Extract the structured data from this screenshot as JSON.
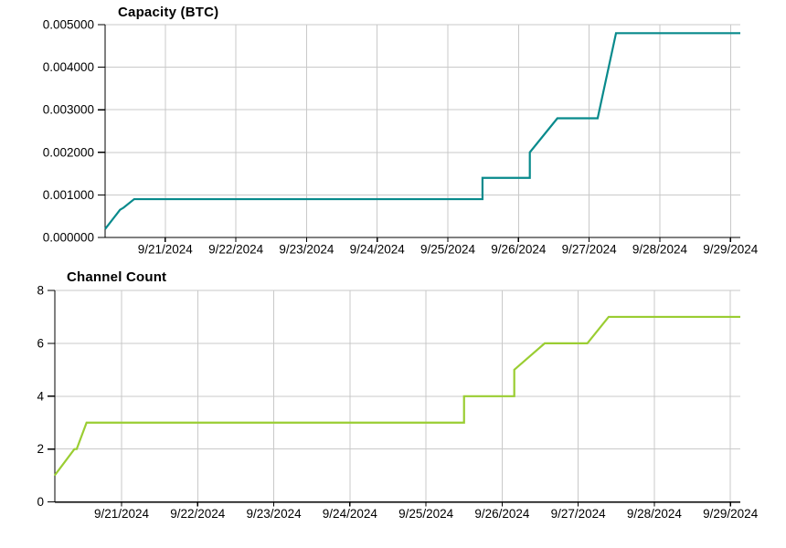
{
  "page_background": "#ffffff",
  "chart_data": [
    {
      "id": "capacity",
      "type": "line",
      "title": "Capacity (BTC)",
      "line_color": "#088a8c",
      "grid_color": "#c9c9c9",
      "axis_color": "#000000",
      "text_color": "#000000",
      "grid": true,
      "legend": "none",
      "x_range_days": [
        20.149,
        29.139
      ],
      "ylim": [
        0,
        0.005
      ],
      "x_ticks": [
        {
          "day": 21,
          "label": "9/21/2024"
        },
        {
          "day": 22,
          "label": "9/22/2024"
        },
        {
          "day": 23,
          "label": "9/23/2024"
        },
        {
          "day": 24,
          "label": "9/24/2024"
        },
        {
          "day": 25,
          "label": "9/25/2024"
        },
        {
          "day": 26,
          "label": "9/26/2024"
        },
        {
          "day": 27,
          "label": "9/27/2024"
        },
        {
          "day": 28,
          "label": "9/28/2024"
        },
        {
          "day": 29,
          "label": "9/29/2024"
        }
      ],
      "y_ticks": [
        {
          "value": 0,
          "label": "0.000000"
        },
        {
          "value": 0.001,
          "label": "0.001000"
        },
        {
          "value": 0.002,
          "label": "0.002000"
        },
        {
          "value": 0.003,
          "label": "0.003000"
        },
        {
          "value": 0.004,
          "label": "0.004000"
        },
        {
          "value": 0.005,
          "label": "0.005000"
        }
      ],
      "points": [
        [
          20.15,
          0.0002
        ],
        [
          20.36,
          0.00065
        ],
        [
          20.41,
          0.0007
        ],
        [
          20.56,
          0.0009
        ],
        [
          25.49,
          0.0009
        ],
        [
          25.49,
          0.0014
        ],
        [
          26.16,
          0.0014
        ],
        [
          26.16,
          0.002
        ],
        [
          26.55,
          0.0028
        ],
        [
          27.12,
          0.0028
        ],
        [
          27.38,
          0.0048
        ],
        [
          29.139,
          0.0048
        ]
      ]
    },
    {
      "id": "channel-count",
      "type": "line",
      "title": "Channel Count",
      "line_color": "#9acd32",
      "grid_color": "#c9c9c9",
      "axis_color": "#000000",
      "text_color": "#000000",
      "grid": true,
      "legend": "none",
      "x_range_days": [
        20.123,
        29.13
      ],
      "ylim": [
        0,
        8
      ],
      "x_ticks": [
        {
          "day": 21,
          "label": "9/21/2024"
        },
        {
          "day": 22,
          "label": "9/22/2024"
        },
        {
          "day": 23,
          "label": "9/23/2024"
        },
        {
          "day": 24,
          "label": "9/24/2024"
        },
        {
          "day": 25,
          "label": "9/25/2024"
        },
        {
          "day": 26,
          "label": "9/26/2024"
        },
        {
          "day": 27,
          "label": "9/27/2024"
        },
        {
          "day": 28,
          "label": "9/28/2024"
        },
        {
          "day": 29,
          "label": "9/29/2024"
        }
      ],
      "y_ticks": [
        {
          "value": 0,
          "label": "0"
        },
        {
          "value": 2,
          "label": "2"
        },
        {
          "value": 4,
          "label": "4"
        },
        {
          "value": 6,
          "label": "6"
        },
        {
          "value": 8,
          "label": "8"
        }
      ],
      "points": [
        [
          20.12,
          1
        ],
        [
          20.38,
          2
        ],
        [
          20.41,
          2
        ],
        [
          20.54,
          3
        ],
        [
          25.5,
          3
        ],
        [
          25.5,
          4
        ],
        [
          26.16,
          4
        ],
        [
          26.16,
          5
        ],
        [
          26.56,
          6
        ],
        [
          27.12,
          6
        ],
        [
          27.4,
          7
        ],
        [
          29.13,
          7
        ]
      ]
    }
  ]
}
